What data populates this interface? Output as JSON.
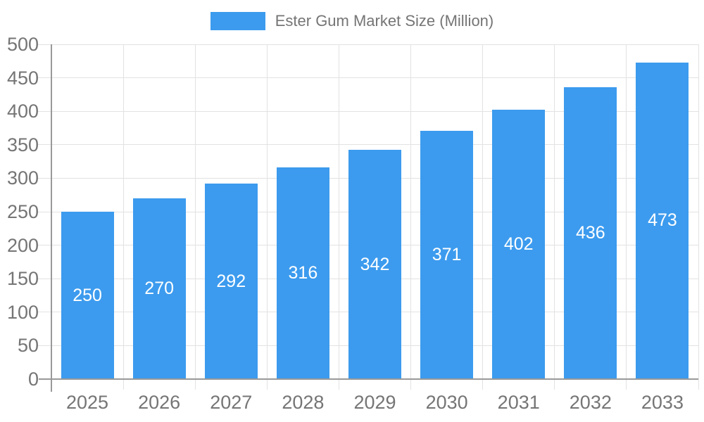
{
  "chart_data": {
    "type": "bar",
    "categories": [
      "2025",
      "2026",
      "2027",
      "2028",
      "2029",
      "2030",
      "2031",
      "2032",
      "2033"
    ],
    "series": [
      {
        "name": "Ester Gum Market Size (Million)",
        "values": [
          250,
          270,
          292,
          316,
          342,
          371,
          402,
          436,
          473
        ]
      }
    ],
    "title": "",
    "xlabel": "",
    "ylabel": "",
    "ylim": [
      0,
      500
    ],
    "ytick_step": 50,
    "grid": true,
    "legend_position": "top",
    "value_labels": "inside-center",
    "colors": {
      "bar": "#3C9BEE",
      "value_label": "#ffffff",
      "grid": "#E2E2E2",
      "axis": "#999999",
      "tick_label": "#757575",
      "legend_text": "#757575",
      "background": "#ffffff"
    }
  }
}
